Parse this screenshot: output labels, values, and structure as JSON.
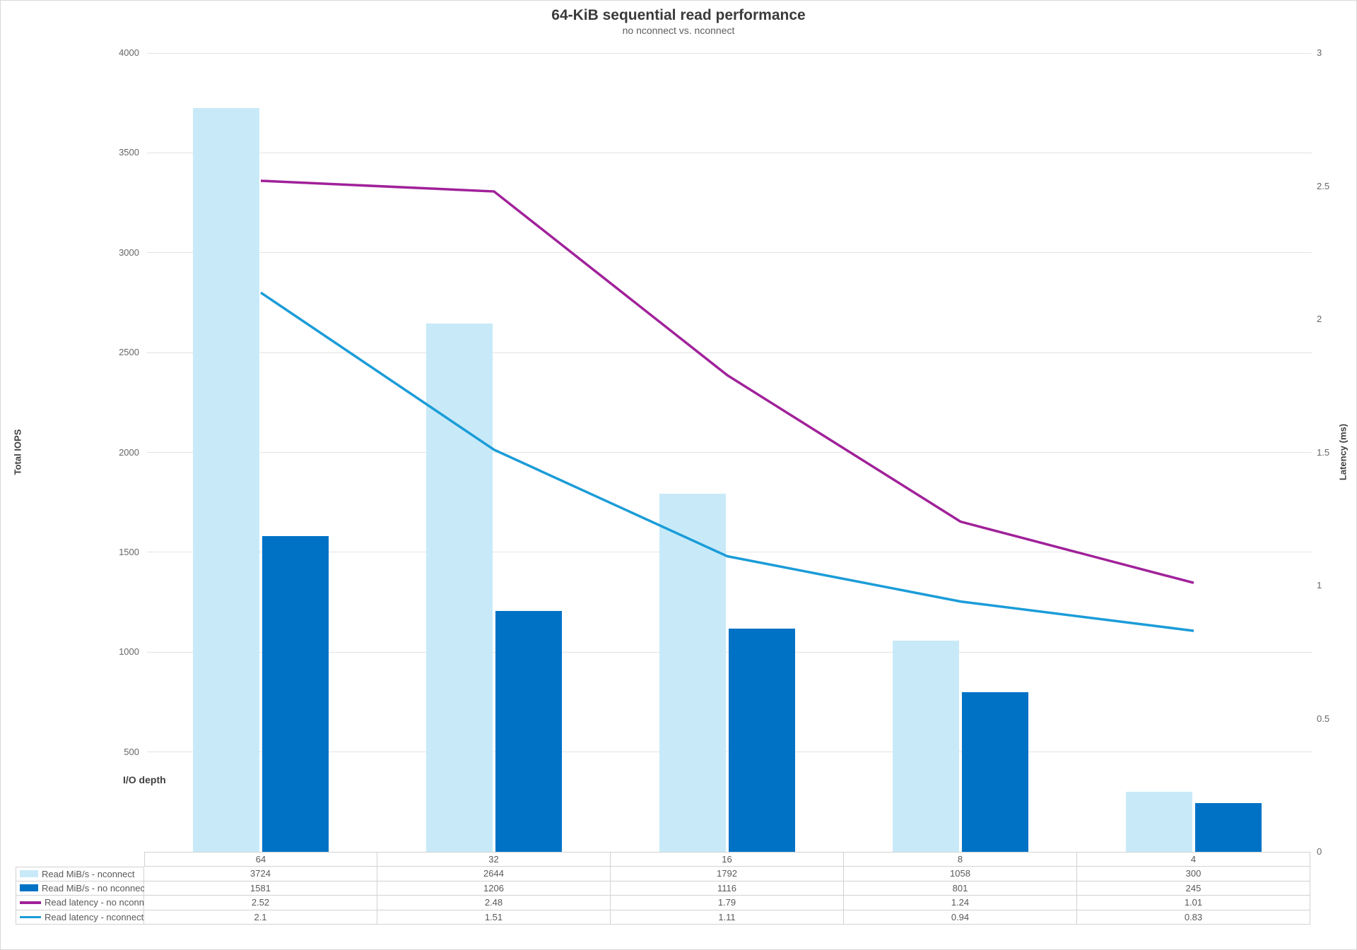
{
  "title": "64-KiB sequential read performance",
  "subtitle": "no nconnect vs. nconnect",
  "colors": {
    "bar_nconnect": "#C8EAF8",
    "bar_no_nconnect": "#0072C6",
    "line_no_nconnect": "#A0219A",
    "line_nconnect": "#1B9CD8",
    "gridline": "#E3E3E3",
    "table_border": "#D2D2D2",
    "text": "#595959"
  },
  "chart_data": {
    "type": "combo-bar-line",
    "title": "64-KiB sequential read performance",
    "subtitle": "no nconnect vs. nconnect",
    "categories": [
      "64",
      "32",
      "16",
      "8",
      "4"
    ],
    "x_axis_label": "I/O depth",
    "left_axis": {
      "label": "Total IOPS",
      "min": 0,
      "max": 4000,
      "ticks": [
        4000,
        3500,
        3000,
        2500,
        2000,
        1500,
        1000,
        500
      ]
    },
    "right_axis": {
      "label": "Latency (ms)",
      "min": 0,
      "max": 3,
      "ticks": [
        3,
        2.5,
        2,
        1.5,
        1,
        0.5,
        0
      ]
    },
    "grid": true,
    "legend_position": "table-left",
    "series": [
      {
        "name": "Read MiB/s - nconnect",
        "type": "bar",
        "axis": "left",
        "color": "#C8EAF8",
        "values": [
          3724,
          2644,
          1792,
          1058,
          300
        ]
      },
      {
        "name": "Read MiB/s - no nconnect",
        "type": "bar",
        "axis": "left",
        "color": "#0072C6",
        "values": [
          1581,
          1206,
          1116,
          801,
          245
        ]
      },
      {
        "name": "Read latency - no nconnect",
        "type": "line",
        "axis": "right",
        "color": "#A0219A",
        "values": [
          2.52,
          2.48,
          1.79,
          1.24,
          1.01
        ]
      },
      {
        "name": "Read latency - nconnect",
        "type": "line",
        "axis": "right",
        "color": "#1B9CD8",
        "values": [
          2.1,
          1.51,
          1.11,
          0.94,
          0.83
        ]
      }
    ]
  }
}
